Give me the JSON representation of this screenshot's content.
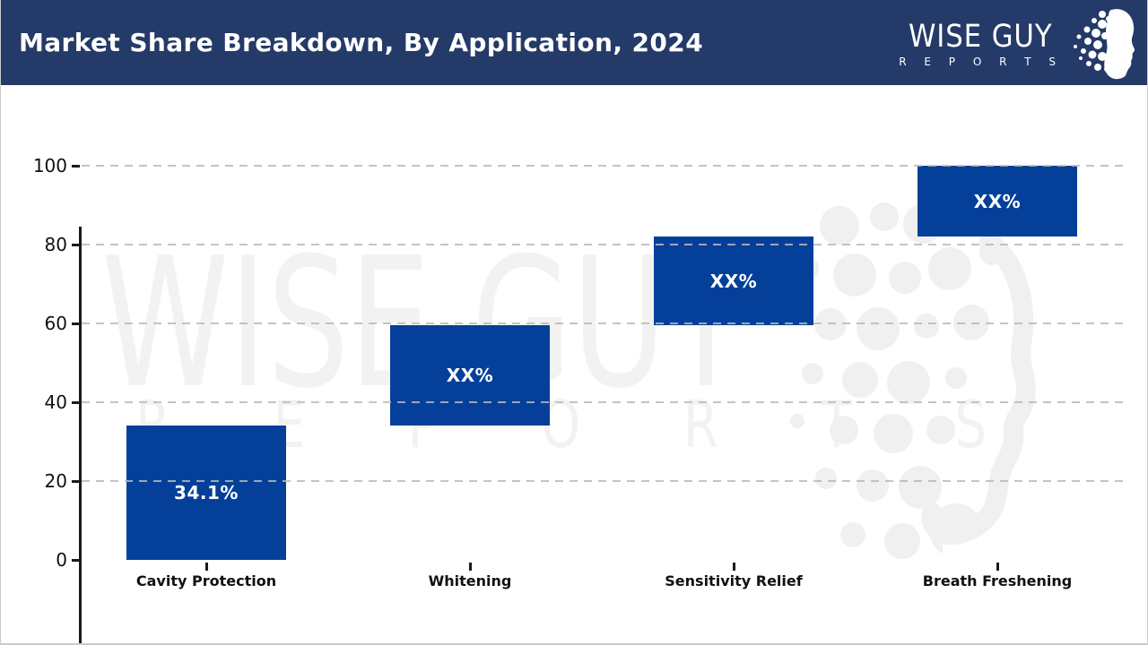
{
  "header": {
    "title": "Market Share Breakdown, By Application, 2024",
    "background_color": "#243a68",
    "logo": {
      "line1": "WISE GUY",
      "line2": "R E P O R T S",
      "head_icon": "dotted-head-profile"
    }
  },
  "watermark": {
    "line1": "WISE GUY",
    "line2": "R E P O R T S",
    "head_pattern": "dotted-head-profile",
    "color": "#f2f2f2"
  },
  "chart_data": {
    "type": "bar",
    "subtype": "waterfall",
    "title": "Market Share Breakdown, By Application, 2024",
    "categories": [
      "Cavity Protection",
      "Whitening",
      "Sensitivity Relief",
      "Breath Freshening"
    ],
    "segments": [
      {
        "category": "Cavity Protection",
        "start": 0,
        "end": 34.1,
        "label": "34.1%"
      },
      {
        "category": "Whitening",
        "start": 34.1,
        "end": 59.5,
        "label": "XX%"
      },
      {
        "category": "Sensitivity Relief",
        "start": 59.5,
        "end": 82.0,
        "label": "XX%"
      },
      {
        "category": "Breath Freshening",
        "start": 82.0,
        "end": 100.0,
        "label": "XX%"
      }
    ],
    "yticks": [
      0,
      20,
      40,
      60,
      80,
      100
    ],
    "ylim": [
      0,
      106
    ],
    "xlabel": "",
    "ylabel": "",
    "grid": "horizontal-dashed-over-bars",
    "gridline_color": "#d9d9d9",
    "bar_color": "#04409a",
    "bar_label_color": "#ffffff",
    "axis_color": "#1a1a1a",
    "legend_position": "none"
  }
}
